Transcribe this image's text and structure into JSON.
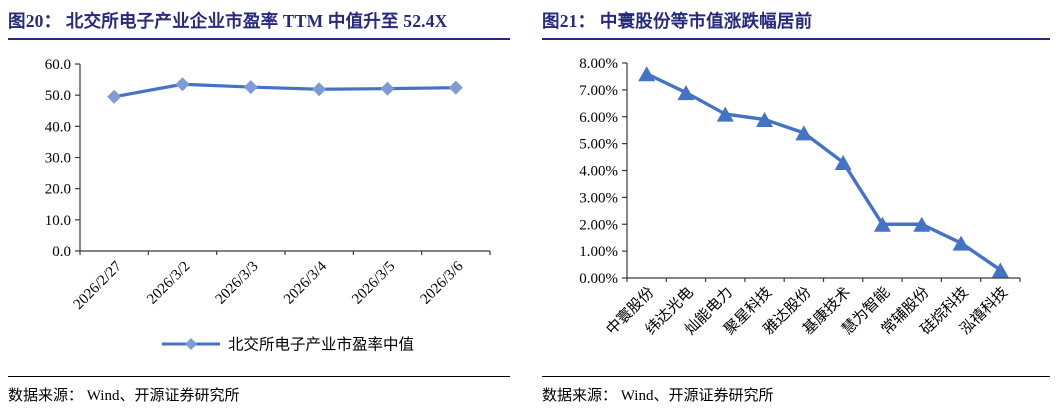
{
  "figures": [
    {
      "label": "图20:",
      "title": "图20： 北交所电子产业企业市盈率 TTM 中值升至 52.4X",
      "source": "数据来源： Wind、开源证券研究所"
    },
    {
      "label": "图21:",
      "title": "图21： 中寰股份等市值涨跌幅居前",
      "source": "数据来源： Wind、开源证券研究所"
    }
  ],
  "colors": {
    "title_navy": "#262A7C",
    "line_blue": "#4472C4",
    "diamond_fill": "#7D9BD5",
    "triangle_fill": "#4472C4",
    "axis_gray": "#3a3a3a",
    "text_black": "#000000"
  },
  "chart_data": [
    {
      "type": "line",
      "categories": [
        "2026/2/27",
        "2026/3/2",
        "2026/3/3",
        "2026/3/4",
        "2026/3/5",
        "2026/3/6"
      ],
      "series": [
        {
          "name": "北交所电子产业市盈率中值",
          "values": [
            49.5,
            53.5,
            52.6,
            51.9,
            52.1,
            52.4
          ]
        }
      ],
      "ylim": [
        0,
        60
      ],
      "ystep": 10,
      "yformat": "fixed1",
      "ytick_labels": [
        "0.0",
        "10.0",
        "20.0",
        "30.0",
        "40.0",
        "50.0",
        "60.0"
      ],
      "marker": "diamond",
      "legend": true,
      "legend_position": "bottom",
      "grid": false
    },
    {
      "type": "line",
      "categories": [
        "中寰股份",
        "纬达光电",
        "灿能电力",
        "聚星科技",
        "雅达股份",
        "基康技术",
        "慧为智能",
        "常辅股份",
        "硅烷科技",
        "泓禧科技"
      ],
      "series": [
        {
          "values": [
            7.6,
            6.9,
            6.1,
            5.9,
            5.4,
            4.3,
            2.0,
            2.0,
            1.3,
            0.3
          ]
        }
      ],
      "ylim": [
        0,
        8
      ],
      "ystep": 1,
      "yformat": "pct2",
      "ytick_labels": [
        "0.00%",
        "1.00%",
        "2.00%",
        "3.00%",
        "4.00%",
        "5.00%",
        "6.00%",
        "7.00%",
        "8.00%"
      ],
      "marker": "triangle",
      "legend": false,
      "grid": false
    }
  ]
}
